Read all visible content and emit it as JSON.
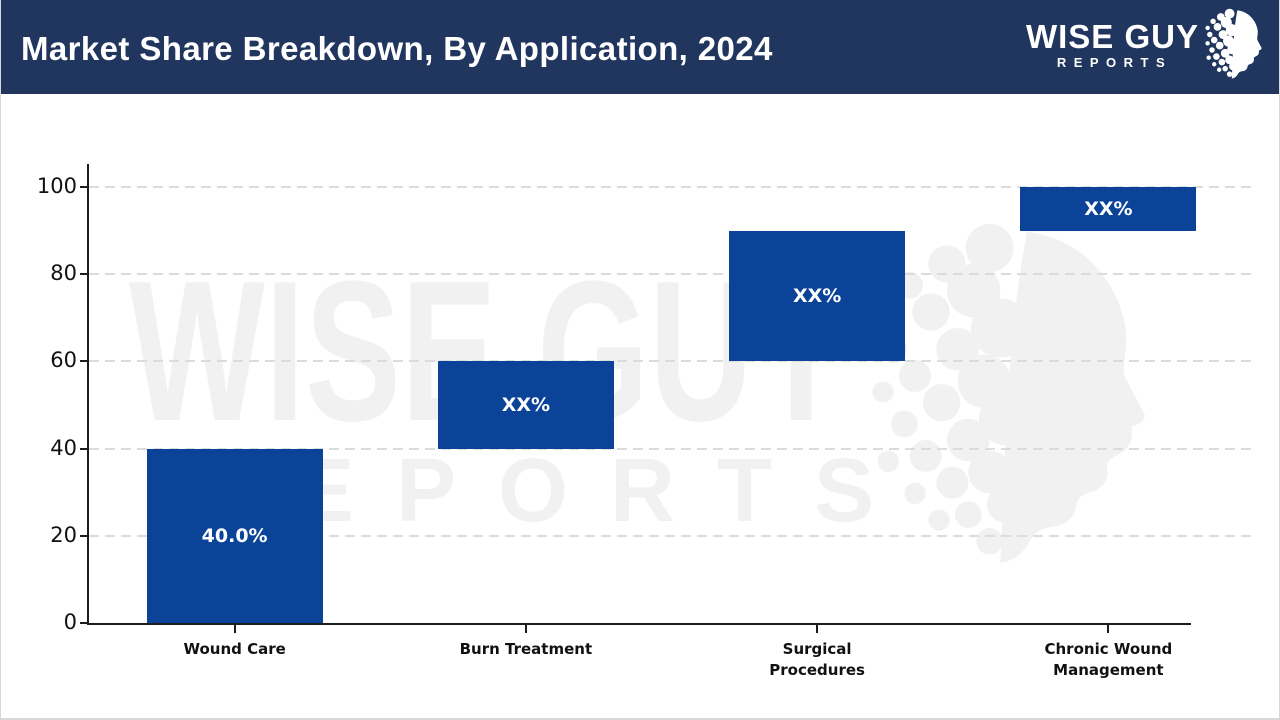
{
  "page": {
    "background": "#ffffff",
    "border_color": "#d8d8d8"
  },
  "header": {
    "background": "#21365f",
    "text_color": "#ffffff",
    "title": "Market Share Breakdown, By Application, 2024",
    "logo": {
      "wordmark": "WISE GUY",
      "subtext": "REPORTS"
    }
  },
  "watermark": {
    "line1": "WISE GUY",
    "line2": "REPORTS",
    "color": "#f1f1f1"
  },
  "chart_data": {
    "type": "bar",
    "subtype": "floating-segment waterfall of market share",
    "title": "Market Share Breakdown, By Application, 2024",
    "categories": [
      "Wound Care",
      "Burn Treatment",
      "Surgical Procedures",
      "Chronic Wound Management"
    ],
    "bars": [
      {
        "category": "Wound Care",
        "label_lines": [
          "Wound Care"
        ],
        "segment_start": 0,
        "segment_end": 40,
        "value_label": "40.0%"
      },
      {
        "category": "Burn Treatment",
        "label_lines": [
          "Burn Treatment"
        ],
        "segment_start": 40,
        "segment_end": 60,
        "value_label": "XX%"
      },
      {
        "category": "Surgical Procedures",
        "label_lines": [
          "Surgical",
          "Procedures"
        ],
        "segment_start": 60,
        "segment_end": 90,
        "value_label": "XX%"
      },
      {
        "category": "Chronic Wound Management",
        "label_lines": [
          "Chronic Wound",
          "Management"
        ],
        "segment_start": 90,
        "segment_end": 100,
        "value_label": "XX%"
      }
    ],
    "xlabel": "",
    "ylabel": "",
    "ylim": [
      0,
      100
    ],
    "yticks": [
      0,
      20,
      40,
      60,
      80,
      100
    ],
    "grid": {
      "axis": "y",
      "style": "dashed",
      "color": "#dcdcdc"
    },
    "axis_color": "#1c1c1c",
    "tick_label_color": "#111111",
    "bar_color": "#0b4398",
    "bar_label_color": "#ffffff",
    "legend": "none"
  }
}
